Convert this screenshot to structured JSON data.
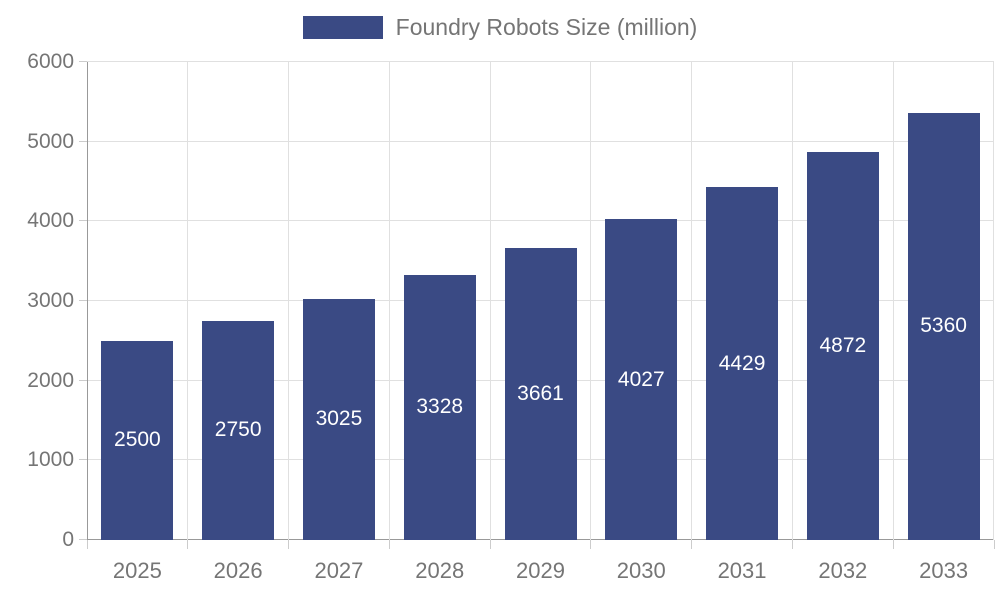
{
  "chart_data": {
    "type": "bar",
    "title": "Foundry Robots Size (million)",
    "categories": [
      "2025",
      "2026",
      "2027",
      "2028",
      "2029",
      "2030",
      "2031",
      "2032",
      "2033"
    ],
    "values": [
      2500,
      2750,
      3025,
      3328,
      3661,
      4027,
      4429,
      4872,
      5360
    ],
    "series": [
      {
        "name": "Foundry Robots Size (million)",
        "values": [
          2500,
          2750,
          3025,
          3328,
          3661,
          4027,
          4429,
          4872,
          5360
        ]
      }
    ],
    "xlabel": "",
    "ylabel": "",
    "ylim": [
      0,
      6000
    ],
    "yticks": [
      0,
      1000,
      2000,
      3000,
      4000,
      5000,
      6000
    ],
    "grid": true,
    "legend_position": "top-center",
    "value_labels": "white, centered inside bars",
    "colors": {
      "bar": "#3A4A84",
      "bar_label": "#FFFFFF",
      "axis_text": "#757575",
      "gridline": "#E0E0E0",
      "axis_line": "#999999",
      "tick": "#CCCCCC",
      "background": "#FFFFFF"
    }
  }
}
